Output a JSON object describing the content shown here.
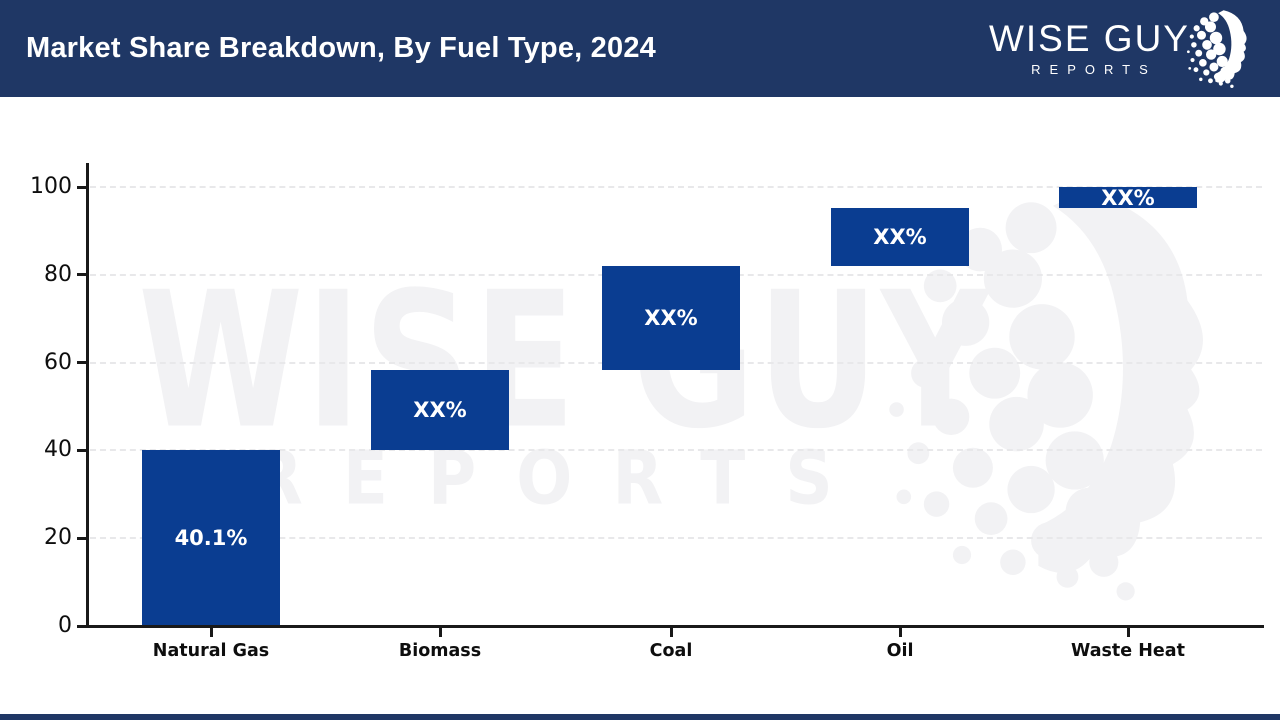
{
  "header": {
    "title": "Market Share Breakdown, By Fuel Type, 2024",
    "logo": {
      "line1": "WISE GUY",
      "line2": "REPORTS"
    }
  },
  "watermark": {
    "line1": "WISE GUY",
    "line2": "REPORTS"
  },
  "footer": {},
  "colors": {
    "header_bg": "#1f3765",
    "footer_bg": "#1f3765",
    "bar": "#0a3d91",
    "watermark": "#f2f2f4",
    "grid": "#e8e8ea"
  },
  "chart_data": {
    "type": "bar",
    "variant": "waterfall",
    "title": "Market Share Breakdown, By Fuel Type, 2024",
    "categories": [
      "Natural Gas",
      "Biomass",
      "Coal",
      "Oil",
      "Waste Heat"
    ],
    "segments": [
      {
        "category": "Natural Gas",
        "start": 0,
        "end": 40.1,
        "label": "40.1%"
      },
      {
        "category": "Biomass",
        "start": 40.1,
        "end": 58.3,
        "label": "XX%"
      },
      {
        "category": "Coal",
        "start": 58.3,
        "end": 81.9,
        "label": "XX%"
      },
      {
        "category": "Oil",
        "start": 81.9,
        "end": 95.2,
        "label": "XX%"
      },
      {
        "category": "Waste Heat",
        "start": 95.2,
        "end": 100,
        "label": "XX%"
      }
    ],
    "yticks": [
      0,
      20,
      40,
      60,
      80,
      100
    ],
    "ylim": [
      0,
      105
    ],
    "xlabel": "",
    "ylabel": "",
    "grid": "horizontal-dashed",
    "legend": "none",
    "bar_color": "#0a3d91"
  }
}
